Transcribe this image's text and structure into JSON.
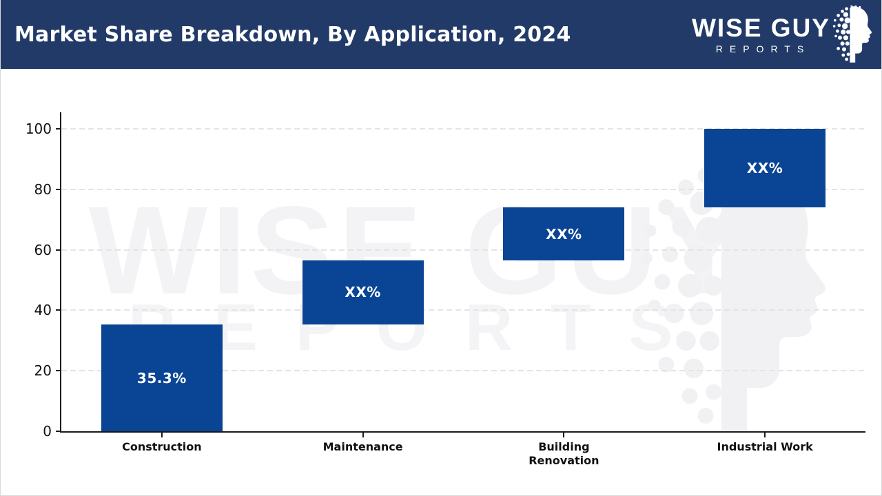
{
  "header": {
    "title": "Market Share Breakdown, By Application, 2024",
    "logo": {
      "line1": "WISE GUY",
      "line2": "REPORTS"
    }
  },
  "watermark": {
    "line1": "WISE GUY",
    "line2": "R E P O R T S"
  },
  "chart_data": {
    "type": "bar",
    "variant": "floating-waterfall",
    "title": "Market Share Breakdown, By Application, 2024",
    "categories": [
      "Construction",
      "Maintenance",
      "Building\nRenovation",
      "Industrial Work"
    ],
    "segments": [
      {
        "category": "Construction",
        "from": 0,
        "to": 35.3,
        "label": "35.3%"
      },
      {
        "category": "Maintenance",
        "from": 35.3,
        "to": 56.5,
        "label": "XX%"
      },
      {
        "category": "Building Renovation",
        "from": 56.5,
        "to": 74.0,
        "label": "XX%"
      },
      {
        "category": "Industrial Work",
        "from": 74.0,
        "to": 100.0,
        "label": "XX%"
      }
    ],
    "ylim": [
      0,
      105
    ],
    "yticks": [
      0,
      20,
      40,
      60,
      80,
      100
    ],
    "grid": "horizontal-dashed",
    "legend": "none",
    "bar_color": "#0a4495",
    "bar_label_color": "#ffffff"
  },
  "colors": {
    "header_bg": "#223a68",
    "title_text": "#ffffff",
    "bar": "#0a4495",
    "grid": "#e4e4e4",
    "axis": "#1a1a1a",
    "watermark": "#f3f3f5",
    "page_border": "#d9d9d9"
  }
}
